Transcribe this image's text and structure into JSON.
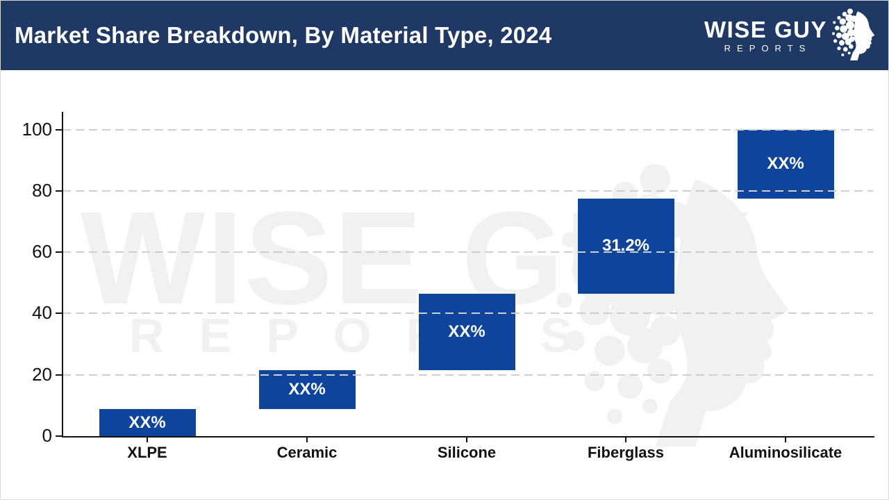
{
  "header": {
    "title": "Market Share Breakdown, By Material Type, 2024",
    "logo": {
      "name": "WISE GUY",
      "sub": "REPORTS"
    }
  },
  "watermark": {
    "name": "WISE GUY",
    "sub": "REPORTS"
  },
  "colors": {
    "header_bg": "#1f3864",
    "bar": "#0e449b",
    "bar_label": "#ffffff",
    "grid": "#cfcfcf",
    "axis": "#111111",
    "watermark": "#f1f1f2"
  },
  "chart_data": {
    "type": "bar",
    "subtype": "floating-waterfall",
    "title": "Market Share Breakdown, By Material Type, 2024",
    "categories": [
      "XLPE",
      "Ceramic",
      "Silicone",
      "Fiberglass",
      "Aluminosilicate"
    ],
    "segments": [
      {
        "category": "XLPE",
        "start": 0,
        "end": 8.8,
        "size": 8.8,
        "label": "XX%"
      },
      {
        "category": "Ceramic",
        "start": 8.8,
        "end": 21.5,
        "size": 12.7,
        "label": "XX%"
      },
      {
        "category": "Silicone",
        "start": 21.5,
        "end": 46.4,
        "size": 24.9,
        "label": "XX%"
      },
      {
        "category": "Fiberglass",
        "start": 46.4,
        "end": 77.6,
        "size": 31.2,
        "label": "31.2%"
      },
      {
        "category": "Aluminosilicate",
        "start": 77.6,
        "end": 100,
        "size": 22.4,
        "label": "XX%"
      }
    ],
    "yticks": [
      0,
      20,
      40,
      60,
      80,
      100
    ],
    "ylim": [
      0,
      105.8
    ],
    "xlabel": "",
    "ylabel": "",
    "grid": "horizontal-dashed",
    "legend": "none"
  }
}
